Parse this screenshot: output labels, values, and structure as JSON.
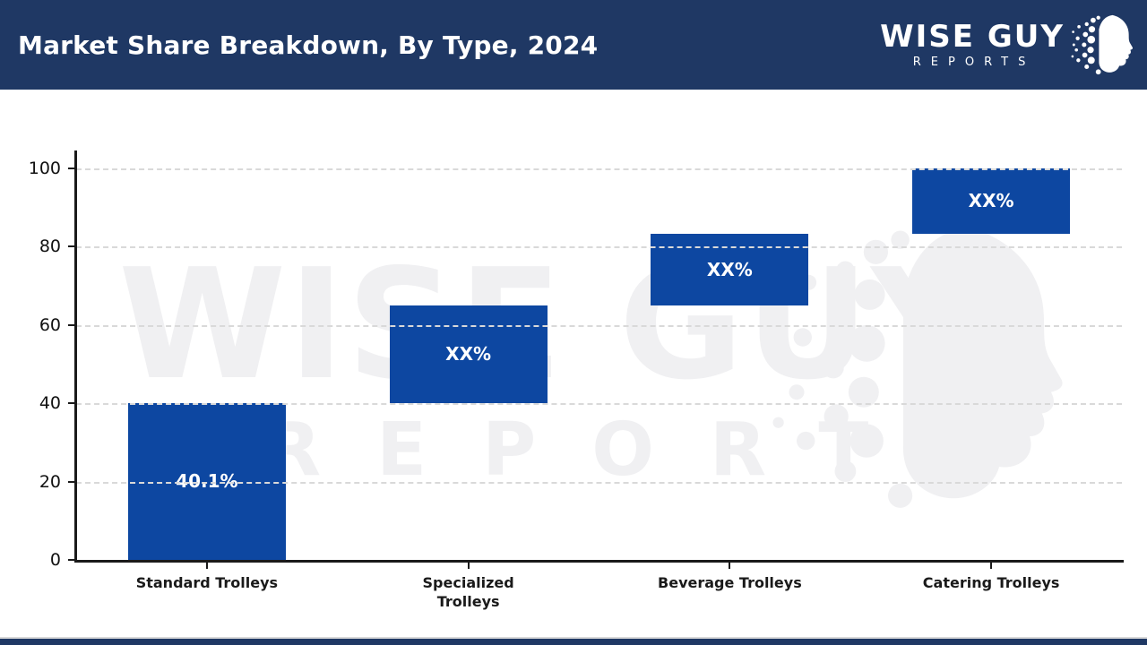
{
  "header": {
    "title": "Market Share Breakdown, By Type, 2024",
    "logo": {
      "line1": "WISE GUY",
      "line2": "REPORTS"
    }
  },
  "watermark": {
    "line1": "WISE GUY.",
    "line2": "REPORTS"
  },
  "chart_data": {
    "type": "bar",
    "subtype": "waterfall",
    "title": "Market Share Breakdown, By Type, 2024",
    "xlabel": "",
    "ylabel": "",
    "ylim": [
      0,
      100
    ],
    "yticks": [
      0,
      20,
      40,
      60,
      80,
      100
    ],
    "grid": "horizontal-dashed",
    "legend": "none",
    "bar_color": "#0d47a1",
    "bar_label_color": "#ffffff",
    "categories": [
      "Standard Trolleys",
      "Specialized Trolleys",
      "Beverage Trolleys",
      "Catering Trolleys"
    ],
    "categories_display": [
      [
        "Standard Trolleys"
      ],
      [
        "Specialized",
        "Trolleys"
      ],
      [
        "Beverage Trolleys"
      ],
      [
        "Catering Trolleys"
      ]
    ],
    "segments": [
      {
        "category": "Standard Trolleys",
        "start": 0,
        "end": 40.1,
        "value": 40.1,
        "label": "40.1%"
      },
      {
        "category": "Specialized Trolleys",
        "start": 40.1,
        "end": 65,
        "value": 24.9,
        "label": "XX%"
      },
      {
        "category": "Beverage Trolleys",
        "start": 65,
        "end": 83.4,
        "value": 18.4,
        "label": "XX%"
      },
      {
        "category": "Catering Trolleys",
        "start": 83.4,
        "end": 100,
        "value": 16.6,
        "label": "XX%"
      }
    ]
  },
  "colors": {
    "header_bg": "#1f3864",
    "bar": "#0d47a1",
    "gridline": "#d9d9d9",
    "axis": "#1a1a1a",
    "watermark": "#f0f0f2"
  }
}
